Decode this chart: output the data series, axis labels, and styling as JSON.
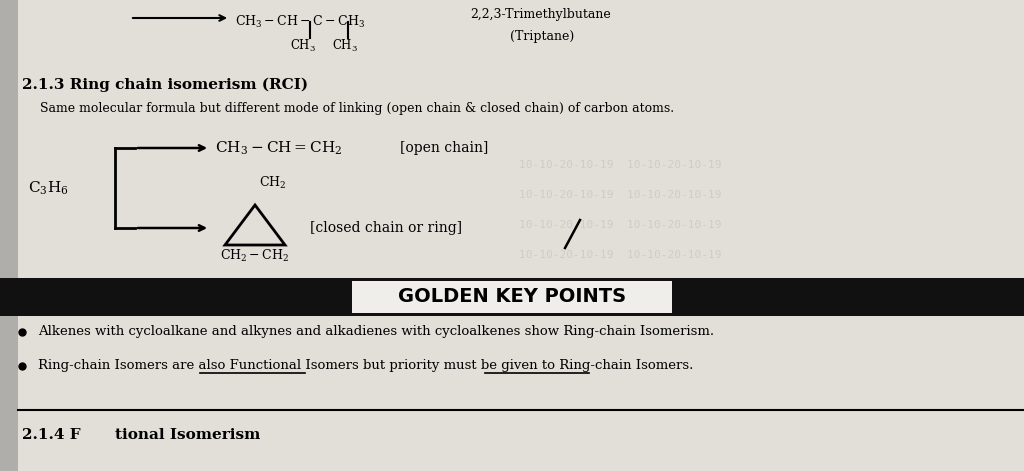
{
  "bg_color": "#b0aeaa",
  "page_bg": "#dedad4",
  "section_title": "2.1.3 Ring chain isomerism (RCI)",
  "section_desc": "Same molecular formula but different mode of linking (open chain & closed chain) of carbon atoms.",
  "formula_left": "C₃H₆",
  "open_chain_label": "[open chain]",
  "closed_chain_label": "[closed chain or ring]",
  "golden_box_bg": "#111111",
  "golden_box_text": "GOLDEN KEY POINTS",
  "golden_box_inner_bg": "#f0eeea",
  "point1": "Alkenes with cycloalkane and alkynes and alkadienes with cycloalkenes show Ring-chain Isomerism.",
  "point2_pre": "Ring-chain Isomers are also ",
  "point2_und1": "Functional Isomers",
  "point2_mid": " but priority must be given to ",
  "point2_und2": "Ring-chain Isomers",
  "point2_end": ".",
  "bottom_text1": "2.1.4 F",
  "bottom_text2": "tional Isomerism"
}
